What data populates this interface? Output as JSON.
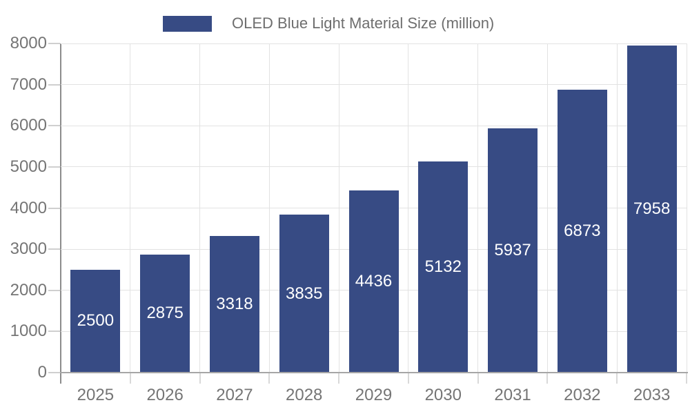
{
  "legend": {
    "label": "OLED Blue Light Material Size (million)"
  },
  "colors": {
    "bar": "#374B84",
    "value_label": "#ffffff",
    "grid": "#e2e2e2",
    "y_axis_line": "#8c8c8c",
    "x_axis_line": "#a6a6a6",
    "tick_text": "#757575",
    "legend_text": "#6e6e6e"
  },
  "chart_data": {
    "type": "bar",
    "title": "OLED Blue Light Material Size (million)",
    "categories": [
      "2025",
      "2026",
      "2027",
      "2028",
      "2029",
      "2030",
      "2031",
      "2032",
      "2033"
    ],
    "values": [
      2500,
      2875,
      3318,
      3835,
      4436,
      5132,
      5937,
      6873,
      7958
    ],
    "series": [
      {
        "name": "OLED Blue Light Material Size (million)",
        "values": [
          2500,
          2875,
          3318,
          3835,
          4436,
          5132,
          5937,
          6873,
          7958
        ]
      }
    ],
    "xlabel": "",
    "ylabel": "",
    "ylim": [
      0,
      8000
    ],
    "ytick_step": 1000,
    "ytick_labels": [
      "0",
      "1000",
      "2000",
      "3000",
      "4000",
      "5000",
      "6000",
      "7000",
      "8000"
    ],
    "grid": true,
    "value_labels_shown": true,
    "value_label_position": "inside-center",
    "legend_position": "top-center",
    "bar_color": "#374B84"
  }
}
